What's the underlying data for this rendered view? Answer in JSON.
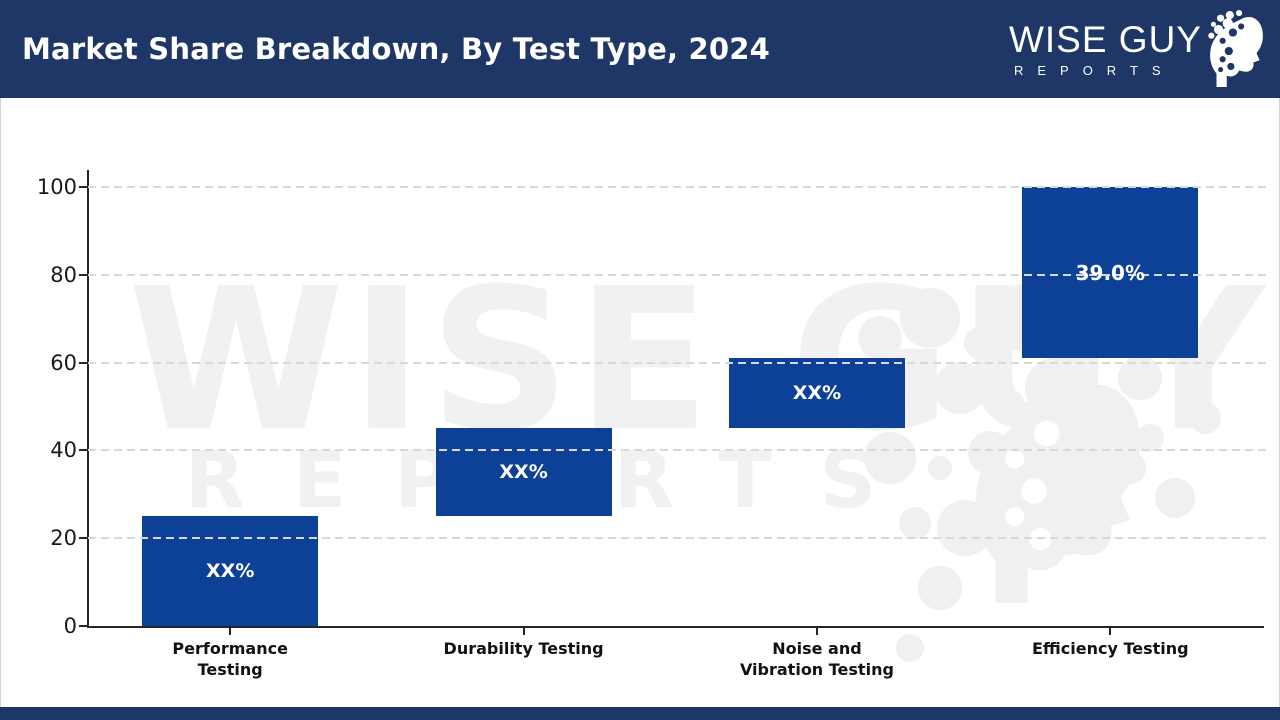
{
  "header": {
    "title": "Market Share Breakdown, By Test Type, 2024",
    "bg_color": "#1f3766",
    "logo": {
      "name": "WISE GUY",
      "subtitle": "REPORTS"
    }
  },
  "watermark": {
    "line1": "WISE GUY",
    "line2": "REPORTS"
  },
  "chart_data": {
    "type": "bar",
    "subtype": "waterfall",
    "title": "Market Share Breakdown, By Test Type, 2024",
    "categories": [
      "Performance Testing",
      "Durability Testing",
      "Noise and Vibration Testing",
      "Efficiency Testing"
    ],
    "category_label_lines": [
      [
        "Performance",
        "Testing"
      ],
      [
        "Durability Testing"
      ],
      [
        "Noise and",
        "Vibration Testing"
      ],
      [
        "Efficiency Testing"
      ]
    ],
    "segments": [
      {
        "category": "Performance Testing",
        "start": 0,
        "end": 25,
        "label": "XX%"
      },
      {
        "category": "Durability Testing",
        "start": 25,
        "end": 45,
        "label": "XX%"
      },
      {
        "category": "Noise and Vibration Testing",
        "start": 45,
        "end": 61,
        "label": "XX%"
      },
      {
        "category": "Efficiency Testing",
        "start": 61,
        "end": 100,
        "label": "39.0%"
      }
    ],
    "ylim": [
      0,
      100
    ],
    "yticks": [
      0,
      20,
      40,
      60,
      80,
      100
    ],
    "grid": "horizontal-dashed",
    "legend": "none",
    "bar_color": "#0d4097",
    "bar_label_color": "#ffffff"
  },
  "footer": {
    "bg_color": "#1f3766"
  }
}
